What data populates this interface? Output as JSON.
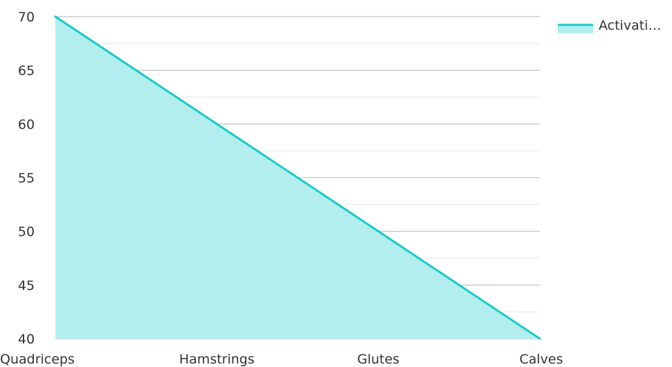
{
  "chart_data": {
    "type": "area",
    "categories": [
      "Quadriceps",
      "Hamstrings",
      "Glutes",
      "Calves"
    ],
    "series": [
      {
        "name": "Activati…",
        "values": [
          70,
          60,
          50,
          40
        ]
      }
    ],
    "ylim": [
      40,
      70
    ],
    "yticks": [
      40,
      45,
      50,
      55,
      60,
      65,
      70
    ],
    "grid": true,
    "legend": "top-right",
    "colors": {
      "line": "#17c9c9",
      "fill": "#b3eeee",
      "grid_major": "#aeb6bb",
      "grid_minor": "#e4e6e8",
      "text": "#333333"
    }
  }
}
